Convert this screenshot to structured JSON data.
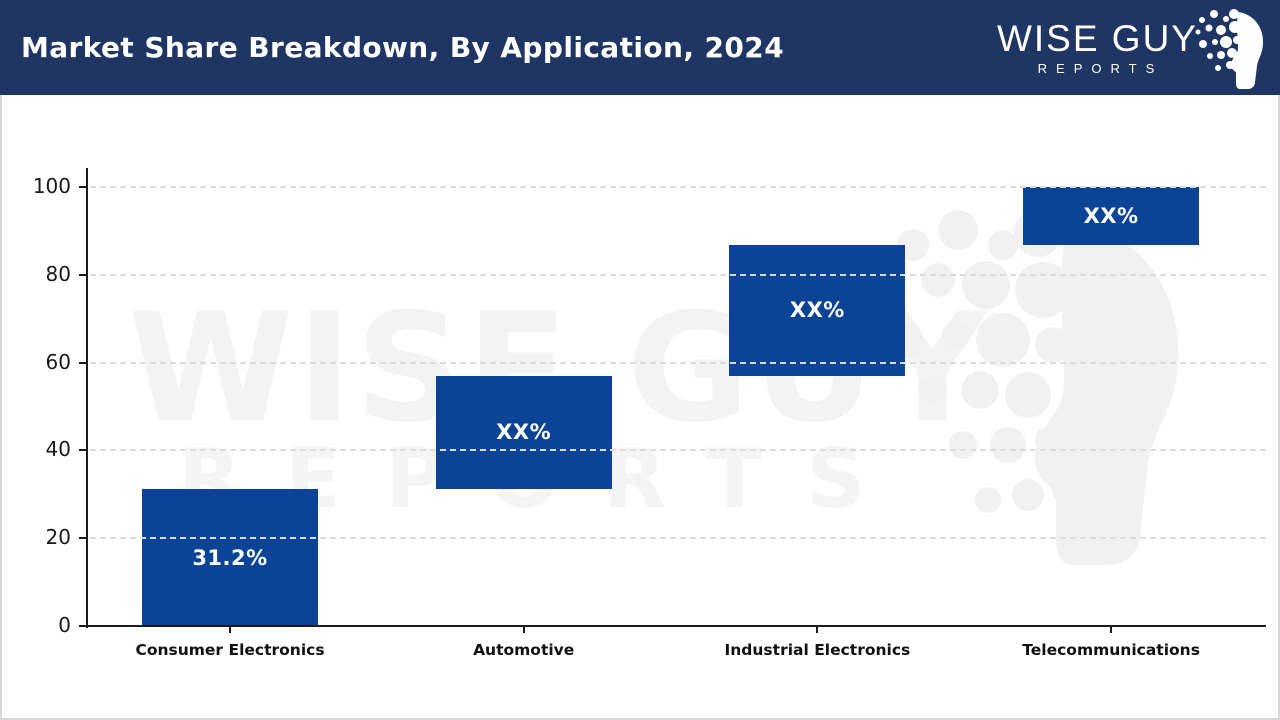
{
  "header": {
    "title": "Market Share Breakdown, By Application, 2024",
    "bg_color": "#1F3563",
    "logo": {
      "line1": "WISE GUY",
      "line2": "REPORTS",
      "head_icon": "dotted-face-profile"
    }
  },
  "watermark": {
    "line1": "WISE GUY",
    "line2": "REPORTS",
    "head_icon": "dotted-face-profile"
  },
  "chart_data": {
    "type": "bar",
    "variant": "waterfall",
    "title": "Market Share Breakdown, By Application, 2024",
    "categories": [
      "Consumer Electronics",
      "Automotive",
      "Industrial Electronics",
      "Telecommunications"
    ],
    "segments": [
      {
        "category": "Consumer Electronics",
        "start": 0,
        "end": 31.2,
        "value": 31.2,
        "label": "31.2%"
      },
      {
        "category": "Automotive",
        "start": 31.2,
        "end": 57.0,
        "value": 25.8,
        "label": "XX%"
      },
      {
        "category": "Industrial Electronics",
        "start": 57.0,
        "end": 86.8,
        "value": 29.8,
        "label": "XX%"
      },
      {
        "category": "Telecommunications",
        "start": 86.8,
        "end": 100,
        "value": 13.2,
        "label": "XX%"
      }
    ],
    "y_ticks": [
      0,
      20,
      40,
      60,
      80,
      100
    ],
    "ylim": [
      0,
      100
    ],
    "xlabel": "",
    "ylabel": "",
    "grid": "horizontal-dashed",
    "legend": "none",
    "bar_color": "#0B4396",
    "gridline_color": "#dcdcdc",
    "axis_color": "#1c1c1c"
  }
}
